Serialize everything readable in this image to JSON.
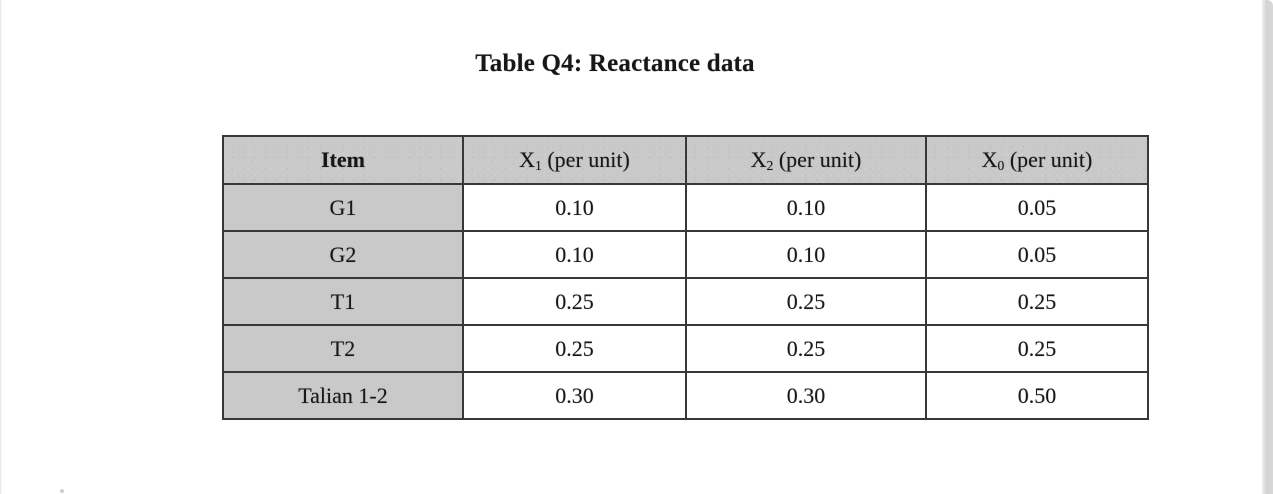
{
  "document": {
    "title": "Table Q4: Reactance data"
  },
  "table": {
    "headers": [
      {
        "label": "Item"
      },
      {
        "base": "X",
        "sub": "1",
        "rest": " (per unit)"
      },
      {
        "base": "X",
        "sub": "2",
        "rest": " (per unit)"
      },
      {
        "base": "X",
        "sub": "0",
        "rest": " (per unit)"
      }
    ],
    "rows": [
      {
        "item": "G1",
        "x1": "0.10",
        "x2": "0.10",
        "x0": "0.05"
      },
      {
        "item": "G2",
        "x1": "0.10",
        "x2": "0.10",
        "x0": "0.05"
      },
      {
        "item": "T1",
        "x1": "0.25",
        "x2": "0.25",
        "x0": "0.25"
      },
      {
        "item": "T2",
        "x1": "0.25",
        "x2": "0.25",
        "x0": "0.25"
      },
      {
        "item": "Talian 1-2",
        "x1": "0.30",
        "x2": "0.30",
        "x0": "0.50"
      }
    ]
  },
  "colors": {
    "page_background": "#ffffff",
    "header_fill": "#c9c9c9",
    "table_border": "#383838",
    "text": "#171717",
    "window_edge": "#d3d3d3"
  }
}
